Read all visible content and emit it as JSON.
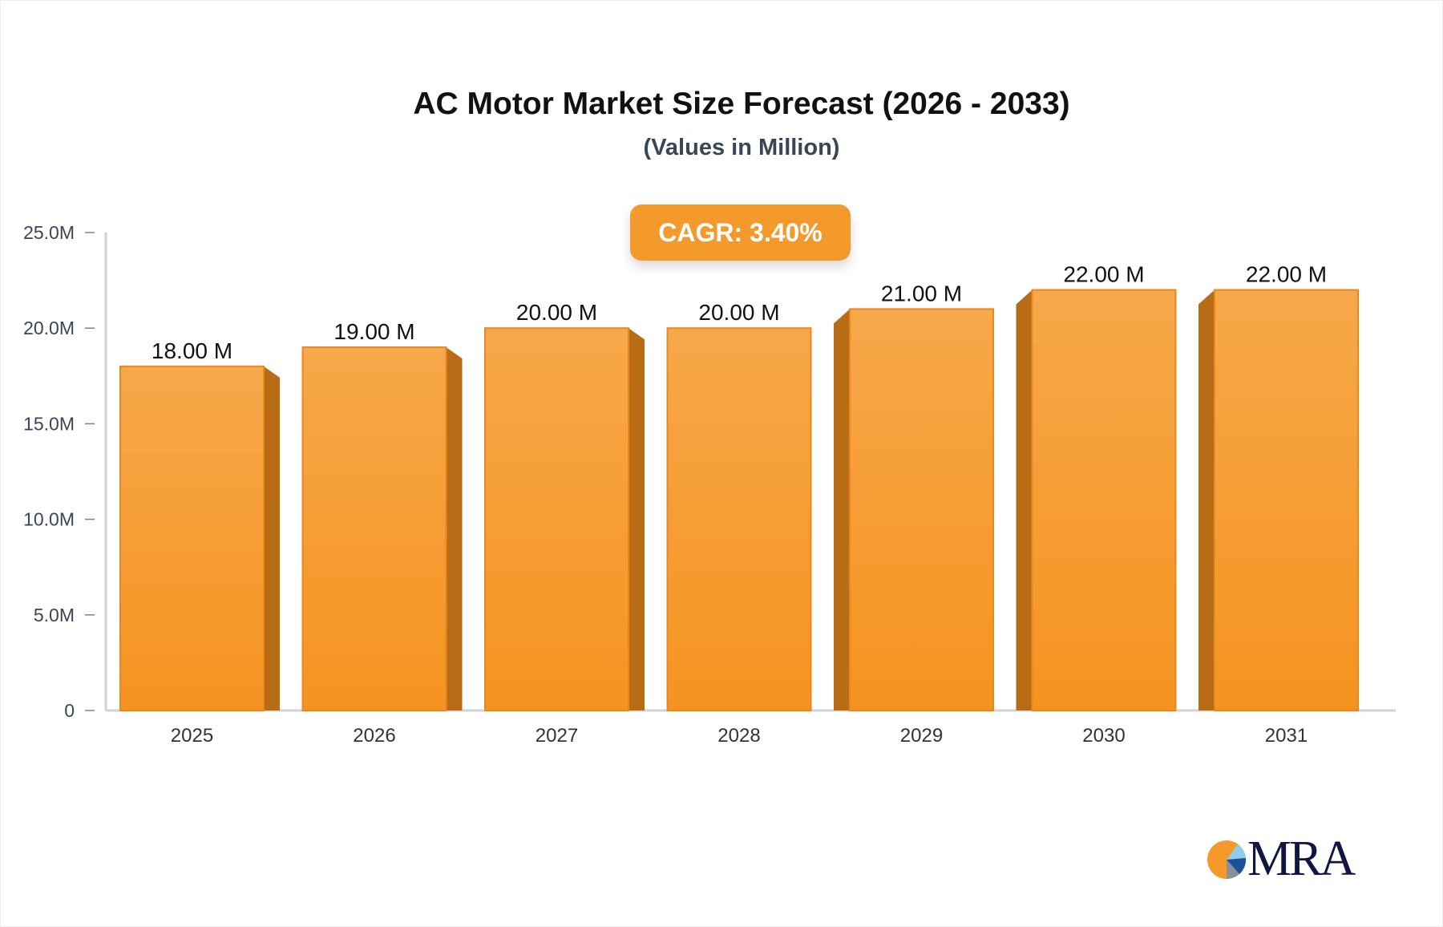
{
  "chart_data": {
    "type": "bar",
    "title": "AC Motor Market Size Forecast (2026 - 2033)",
    "subtitle": "(Values in Million)",
    "categories": [
      "2025",
      "2026",
      "2027",
      "2028",
      "2029",
      "2030",
      "2031"
    ],
    "values": [
      18,
      19,
      20,
      20,
      21,
      22,
      22
    ],
    "data_labels": [
      "18.00 M",
      "19.00 M",
      "20.00 M",
      "20.00 M",
      "21.00 M",
      "22.00 M",
      "22.00 M"
    ],
    "yticks": [
      "0",
      "5.0M",
      "10.0M",
      "15.0M",
      "20.0M",
      "25.0M"
    ],
    "ytick_values": [
      0,
      5,
      10,
      15,
      20,
      25
    ],
    "ylim": [
      0,
      25
    ],
    "xlabel": "",
    "ylabel": "",
    "grid": false,
    "annotation": "CAGR: 3.40%",
    "colors": {
      "bar_top": "#f7a84a",
      "bar_bottom": "#f59320",
      "bar_side": "#b86c16",
      "bar_edge": "#e8881e",
      "axis": "#d0d3da"
    }
  },
  "logo": {
    "text": "MRA"
  }
}
